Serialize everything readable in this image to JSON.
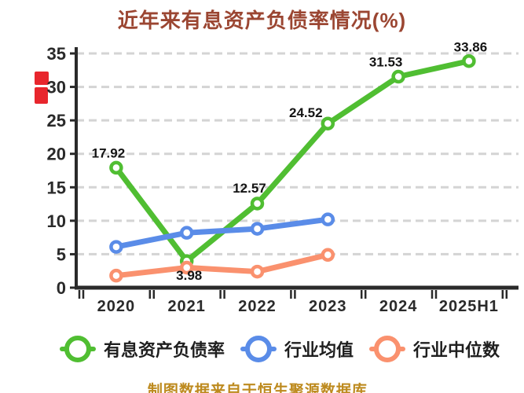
{
  "title": "近年来有息资产负债率情况(%)",
  "caption": "制图数据来自于恒生聚源数据库",
  "colors": {
    "title": "#9b4632",
    "caption": "#bd8a1e",
    "stamp": "#e8262d",
    "axis": "#2a2a2a",
    "grid": "#d4d4d4",
    "tick_label": "#2a2a2a",
    "data_label": "#141414",
    "series_green": "#50be32",
    "series_blue": "#5a8ce8",
    "series_orange": "#fa916e"
  },
  "chart_data": {
    "type": "line",
    "title": "近年来有息资产负债率情况(%)",
    "categories": [
      "2020",
      "2021",
      "2022",
      "2023",
      "2024",
      "2025H1"
    ],
    "series": [
      {
        "name": "有息资产负债率",
        "color": "#50be32",
        "values": [
          17.92,
          3.98,
          12.57,
          24.52,
          31.53,
          33.86
        ],
        "show_labels": true
      },
      {
        "name": "行业均值",
        "color": "#5a8ce8",
        "values": [
          6.1,
          8.2,
          8.8,
          10.2
        ],
        "show_labels": false
      },
      {
        "name": "行业中位数",
        "color": "#fa916e",
        "values": [
          1.8,
          3.0,
          2.4,
          4.9
        ],
        "show_labels": false
      }
    ],
    "xlabel": "",
    "ylabel": "",
    "ylim": [
      0,
      35
    ],
    "yticks": [
      0,
      5,
      10,
      15,
      20,
      25,
      30,
      35
    ],
    "grid": "horizontal-dashed",
    "legend_position": "bottom",
    "source_note": "制图数据来自于恒生聚源数据库"
  }
}
